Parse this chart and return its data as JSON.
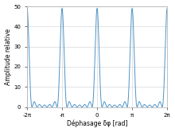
{
  "N": 7,
  "x_min": -6.283185307179586,
  "x_max": 6.283185307179586,
  "y_max": 50,
  "y_min": 0,
  "line_color": "#4d94c8",
  "bg_color": "#ffffff",
  "plot_bg_color": "#ffffff",
  "title": "",
  "xlabel": "Déphasage δφ [rad]",
  "ylabel": "Amplitude relative",
  "x_ticks": [
    -6.283185307179586,
    -3.141592653589793,
    0,
    3.141592653589793,
    6.283185307179586
  ],
  "x_tick_labels": [
    "-2π",
    "-π",
    "0",
    "π",
    "2π"
  ],
  "y_ticks": [
    0,
    10,
    20,
    30,
    40,
    50
  ],
  "figsize": [
    2.2,
    1.66
  ],
  "dpi": 100,
  "linewidth": 0.7,
  "xlabel_fontsize": 5.5,
  "ylabel_fontsize": 5.5,
  "tick_fontsize": 5,
  "grid_color": "#d0d0d0",
  "spine_color": "#aaaaaa"
}
